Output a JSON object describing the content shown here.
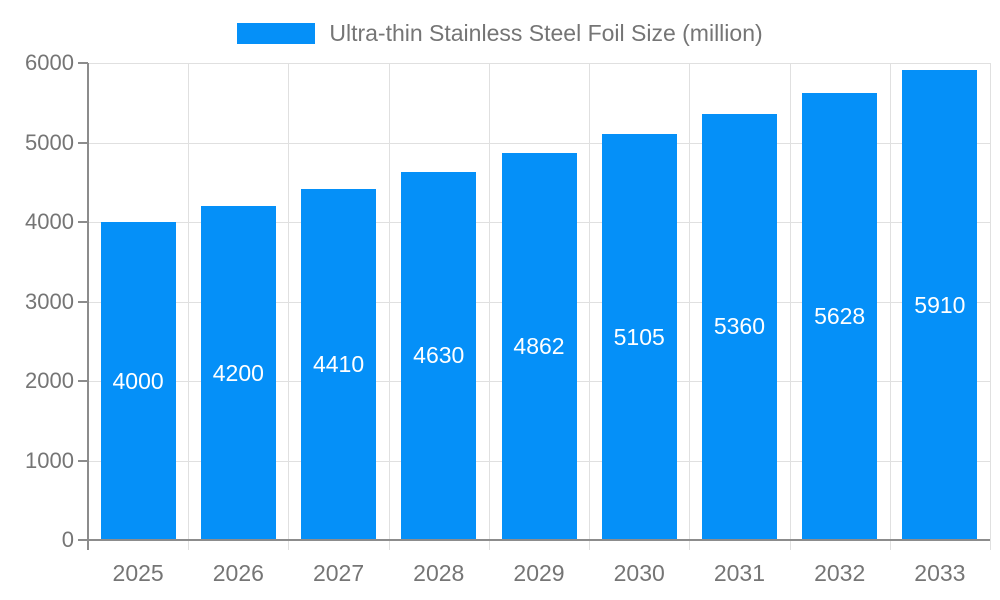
{
  "chart_data": {
    "type": "bar",
    "title": "Ultra-thin Stainless Steel Foil Size (million)",
    "legend_label": "Ultra-thin Stainless Steel Foil Size (million)",
    "legend_position": "top",
    "categories": [
      "2025",
      "2026",
      "2027",
      "2028",
      "2029",
      "2030",
      "2031",
      "2032",
      "2033"
    ],
    "values": [
      4000,
      4200,
      4410,
      4630,
      4862,
      5105,
      5360,
      5628,
      5910
    ],
    "xlabel": "",
    "ylabel": "",
    "ylim": [
      0,
      6000
    ],
    "yticks": [
      0,
      1000,
      2000,
      3000,
      4000,
      5000,
      6000
    ],
    "grid": true,
    "colors": {
      "bar": "#0590f8",
      "bar_value_label": "#ffffff",
      "axis_text": "#757575",
      "axis_line": "#8c8c8c",
      "gridline": "#e0e0e0",
      "background": "#ffffff"
    }
  }
}
